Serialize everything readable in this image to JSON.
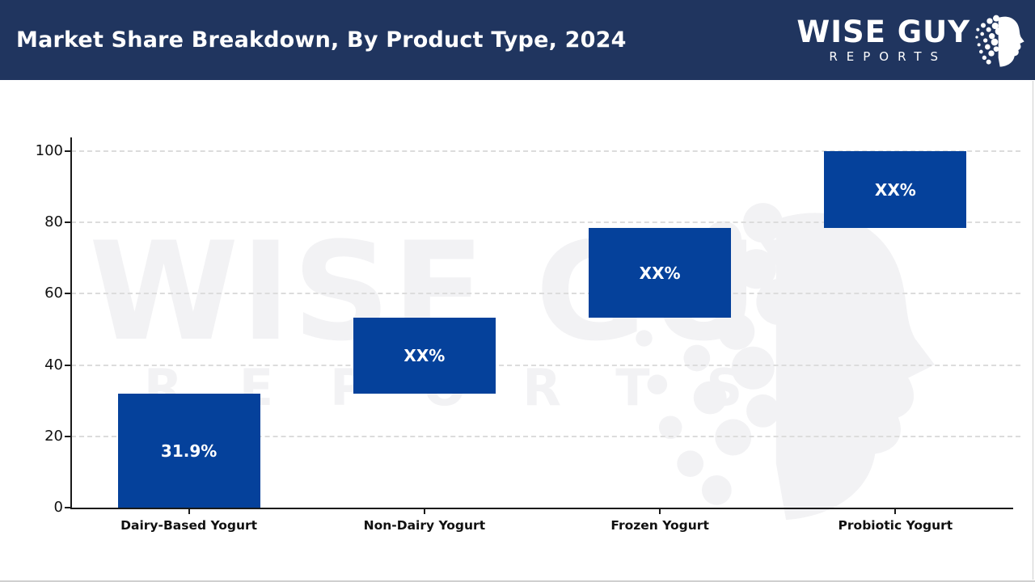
{
  "header": {
    "title": "Market Share Breakdown, By Product Type, 2024",
    "logo_line1": "WISE GUY",
    "logo_line2": "REPORTS"
  },
  "watermark": {
    "line1": "WISE GUY",
    "line2": "REPORTS"
  },
  "chart_data": {
    "type": "bar",
    "subtype": "waterfall",
    "title": "Market Share Breakdown, By Product Type, 2024",
    "categories": [
      "Dairy-Based Yogurt",
      "Non-Dairy Yogurt",
      "Frozen Yogurt",
      "Probiotic Yogurt"
    ],
    "segments": [
      {
        "category": "Dairy-Based Yogurt",
        "start": 0,
        "end": 31.9,
        "label": "31.9%"
      },
      {
        "category": "Non-Dairy Yogurt",
        "start": 31.9,
        "end": 53.2,
        "label": "XX%"
      },
      {
        "category": "Frozen Yogurt",
        "start": 53.2,
        "end": 78.4,
        "label": "XX%"
      },
      {
        "category": "Probiotic Yogurt",
        "start": 78.4,
        "end": 100,
        "label": "XX%"
      }
    ],
    "xlabel": "",
    "ylabel": "",
    "yticks": [
      0,
      20,
      40,
      60,
      80,
      100
    ],
    "ylim": [
      0,
      104
    ],
    "grid": "horizontal-dashed",
    "legend": "none",
    "bar_color": "#05419b",
    "bar_label_color": "#ffffff",
    "grid_color": "#dcdcdc",
    "axis_color": "#1a1a1a"
  },
  "colors": {
    "header_bg": "#20355f",
    "page_bg": "#ffffff",
    "watermark": "#f2f2f4",
    "border": "#cfcfcf"
  }
}
